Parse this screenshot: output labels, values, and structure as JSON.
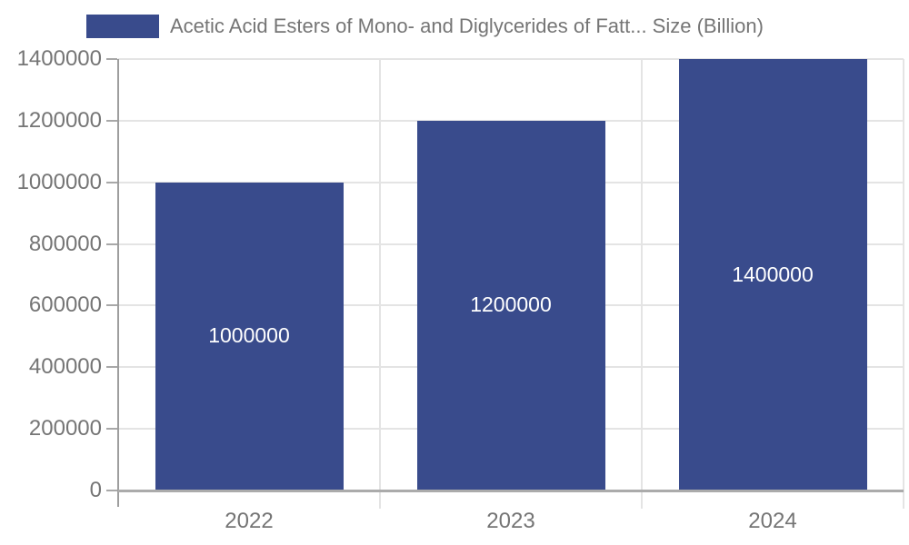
{
  "legend": {
    "label": "Acetic Acid Esters of Mono- and Diglycerides of Fatt... Size (Billion)"
  },
  "colors": {
    "bar": "#394B8C",
    "gridline": "#e4e4e4",
    "axis_line": "#a8a8a8",
    "tick_text": "#757575",
    "bar_value_text": "#ffffff",
    "background": "#ffffff"
  },
  "chart_data": {
    "type": "bar",
    "title": "",
    "xlabel": "",
    "ylabel": "",
    "categories": [
      "2022",
      "2023",
      "2024"
    ],
    "series": [
      {
        "name": "Acetic Acid Esters of Mono- and Diglycerides of Fatt... Size (Billion)",
        "values": [
          1000000,
          1200000,
          1400000
        ]
      }
    ],
    "bar_value_labels": [
      "1000000",
      "1200000",
      "1400000"
    ],
    "ylim": [
      0,
      1400000
    ],
    "yticks": [
      0,
      200000,
      400000,
      600000,
      800000,
      1000000,
      1200000,
      1400000
    ],
    "ytick_labels": [
      "0",
      "200000",
      "400000",
      "600000",
      "800000",
      "1000000",
      "1200000",
      "1400000"
    ],
    "grid": true,
    "legend_position": "top-left"
  }
}
